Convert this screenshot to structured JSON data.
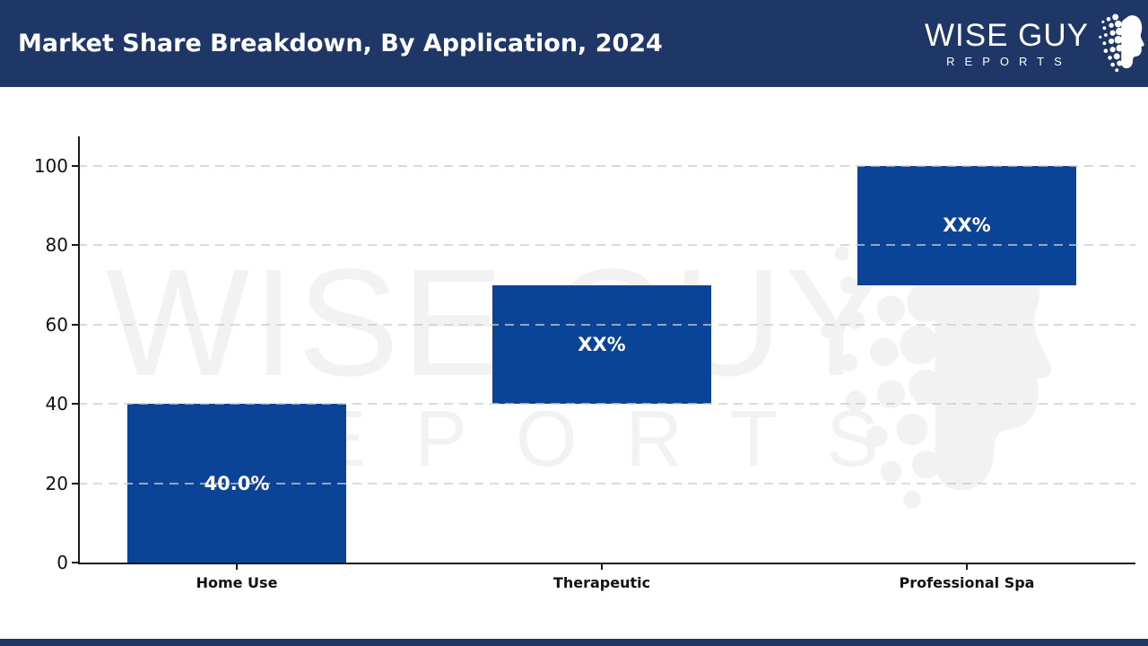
{
  "header": {
    "title": "Market Share Breakdown, By Application, 2024",
    "logo": {
      "line1": "WISE GUY",
      "line2": "REPORTS"
    }
  },
  "watermark": {
    "line1": "WISE GUY",
    "line2": "REPORTS"
  },
  "chart_data": {
    "type": "bar",
    "variant": "waterfall",
    "title": "Market Share Breakdown, By Application, 2024",
    "categories": [
      "Home Use",
      "Therapeutic",
      "Professional Spa"
    ],
    "segments": [
      {
        "category": "Home Use",
        "start": 0,
        "end": 40,
        "label": "40.0%"
      },
      {
        "category": "Therapeutic",
        "start": 40,
        "end": 70,
        "label": "XX%"
      },
      {
        "category": "Professional Spa",
        "start": 70,
        "end": 100,
        "label": "XX%"
      }
    ],
    "ylim": [
      0,
      100
    ],
    "yticks": [
      0,
      20,
      40,
      60,
      80,
      100
    ],
    "grid": "horizontal-dashed",
    "legend_position": "none",
    "bar_color": "#0b4397",
    "bar_label_color": "#ffffff",
    "axis_color": "#1a1a1a",
    "gridline_color": "#cccccc"
  },
  "colors": {
    "header_bg": "#1f3766",
    "footer_bg": "#1f3766",
    "watermark": "#f2f2f2",
    "page_bg": "#ffffff"
  }
}
